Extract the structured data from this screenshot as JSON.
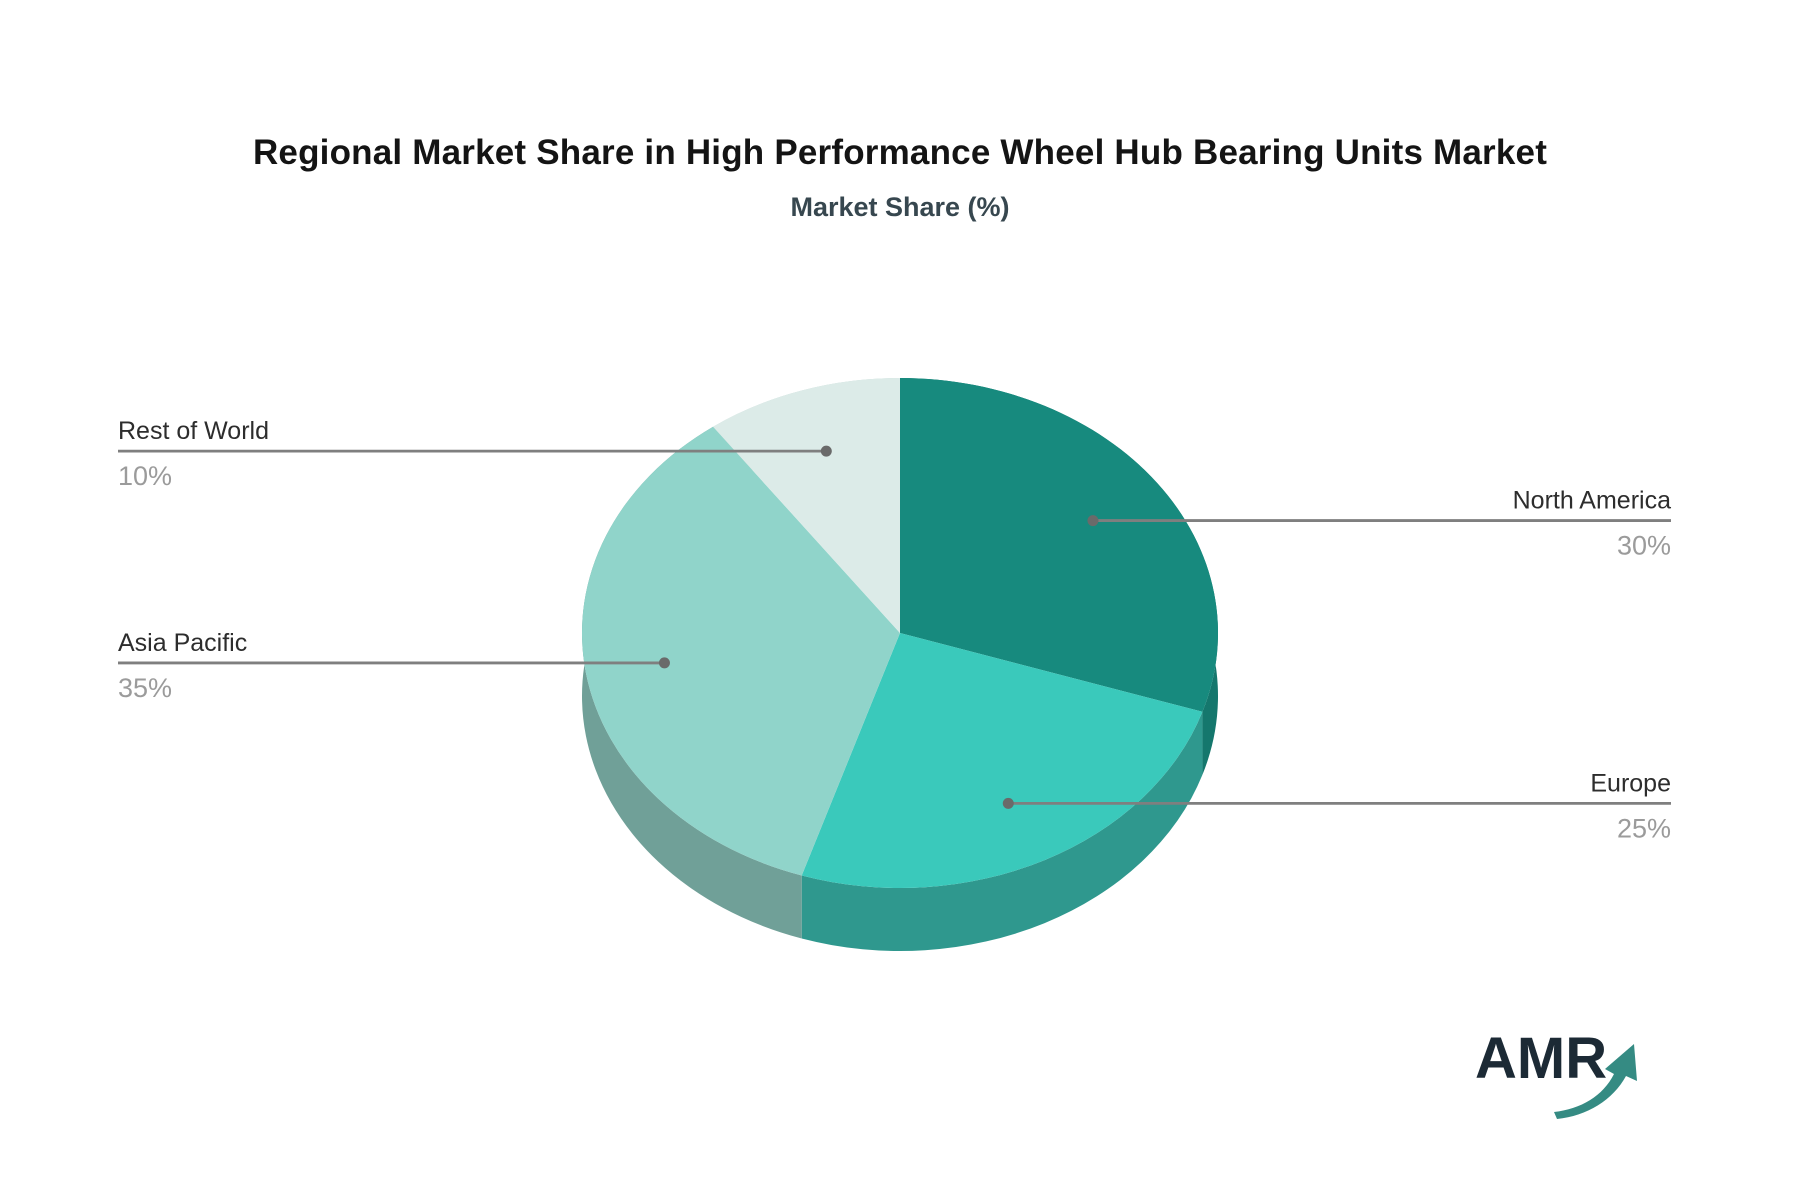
{
  "title": "Regional Market Share in High Performance Wheel Hub Bearing Units Market",
  "subtitle": "Market Share (%)",
  "logo": {
    "text": "AMR",
    "text_color": "#1c2a35",
    "arrow_color": "#358b83"
  },
  "chart_data": {
    "type": "pie",
    "style": "pie-3d",
    "title": "Regional Market Share in High Performance Wheel Hub Bearing Units Market",
    "subtitle": "Market Share (%)",
    "unit": "%",
    "start_angle_deg": 0,
    "direction": "clockwise",
    "legend": "none",
    "slices": [
      {
        "label": "North America",
        "value": 30,
        "pct_label": "30%",
        "color": "#178a7e",
        "side_color": "#15776d",
        "label_side": "right"
      },
      {
        "label": "Europe",
        "value": 25,
        "pct_label": "25%",
        "color": "#3ac9bb",
        "side_color": "#2f988e",
        "label_side": "right"
      },
      {
        "label": "Asia Pacific",
        "value": 35,
        "pct_label": "35%",
        "color": "#90d4ca",
        "side_color": "#70a098",
        "label_side": "left"
      },
      {
        "label": "Rest of World",
        "value": 10,
        "pct_label": "10%",
        "color": "#dcebe8",
        "side_color": "#c2d6d2",
        "label_side": "left"
      }
    ],
    "label_style": {
      "name_color": "#2d2d2d",
      "pct_color": "#9b9b9b",
      "line_color": "#7f7f7f",
      "dot_color": "#6a6a6a"
    }
  }
}
